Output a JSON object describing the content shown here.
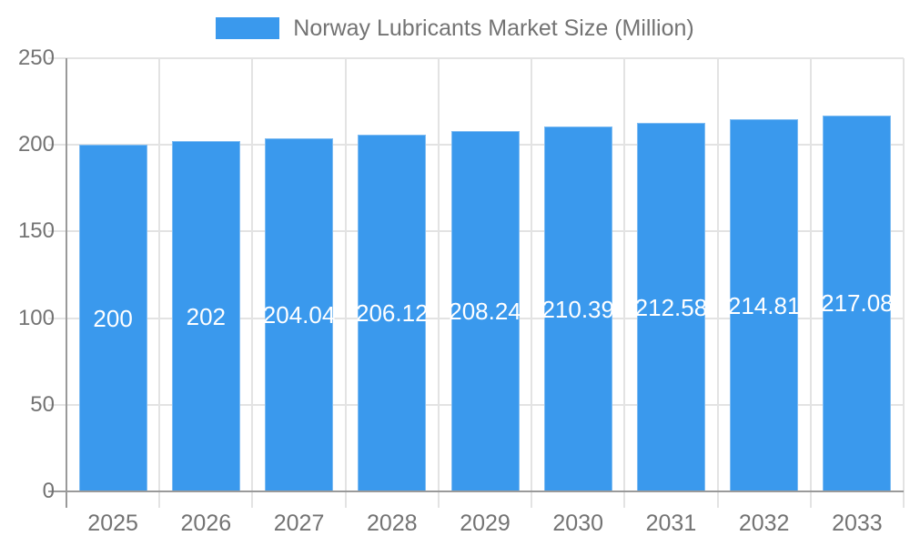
{
  "legend": {
    "label": "Norway Lubricants Market Size (Million)"
  },
  "chart_data": {
    "type": "bar",
    "title": "Norway Lubricants Market Size (Million)",
    "categories": [
      "2025",
      "2026",
      "2027",
      "2028",
      "2029",
      "2030",
      "2031",
      "2032",
      "2033"
    ],
    "values": [
      200,
      202,
      204.04,
      206.12,
      208.24,
      210.39,
      212.58,
      214.81,
      217.08
    ],
    "value_labels": [
      "200",
      "202",
      "204.04",
      "206.12",
      "208.24",
      "210.39",
      "212.58",
      "214.81",
      "217.08"
    ],
    "xlabel": "",
    "ylabel": "",
    "ylim": [
      0,
      250
    ],
    "yticks": [
      0,
      50,
      100,
      150,
      200,
      250
    ],
    "grid": true,
    "legend_position": "top-center",
    "colors": {
      "bar": "#3a99ed",
      "bar_edge": "#7fbcf2",
      "grid": "#e3e3e3",
      "axis": "#9a9a9a",
      "text": "#737373",
      "value_text": "#ffffff"
    }
  }
}
